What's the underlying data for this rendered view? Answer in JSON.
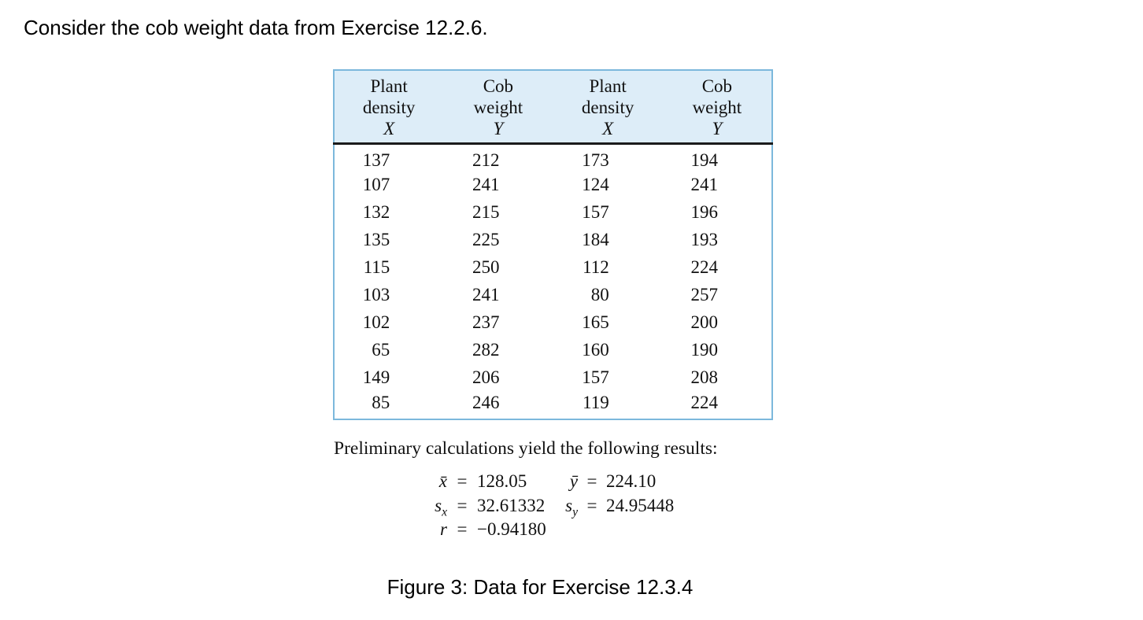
{
  "page": {
    "heading": "Consider the cob weight data from Exercise 12.2.6.",
    "caption": "Figure 3: Data for Exercise 12.3.4"
  },
  "table": {
    "header_bg_color": "#ddedf8",
    "border_color": "#7cb8dc",
    "columns": [
      {
        "line1": "Plant",
        "line2": "density",
        "var": "X"
      },
      {
        "line1": "Cob",
        "line2": "weight",
        "var": "Y"
      },
      {
        "line1": "Plant",
        "line2": "density",
        "var": "X"
      },
      {
        "line1": "Cob",
        "line2": "weight",
        "var": "Y"
      }
    ],
    "rows": [
      [
        "137",
        "212",
        "173",
        "194"
      ],
      [
        "107",
        "241",
        "124",
        "241"
      ],
      [
        "132",
        "215",
        "157",
        "196"
      ],
      [
        "135",
        "225",
        "184",
        "193"
      ],
      [
        "115",
        "250",
        "112",
        "224"
      ],
      [
        "103",
        "241",
        "80",
        "257"
      ],
      [
        "102",
        "237",
        "165",
        "200"
      ],
      [
        "65",
        "282",
        "160",
        "190"
      ],
      [
        "149",
        "206",
        "157",
        "208"
      ],
      [
        "85",
        "246",
        "119",
        "224"
      ]
    ]
  },
  "calculations": {
    "intro": "Preliminary calculations yield the following results:",
    "eq_sign": "=",
    "xbar": {
      "lhs": "x̄",
      "value": "128.05"
    },
    "ybar": {
      "lhs": "ȳ",
      "value": "224.10"
    },
    "sx": {
      "base": "s",
      "sub": "x",
      "value": "32.61332"
    },
    "sy": {
      "base": "s",
      "sub": "y",
      "value": "24.95448"
    },
    "r": {
      "lhs": "r",
      "value": "−0.94180"
    }
  }
}
